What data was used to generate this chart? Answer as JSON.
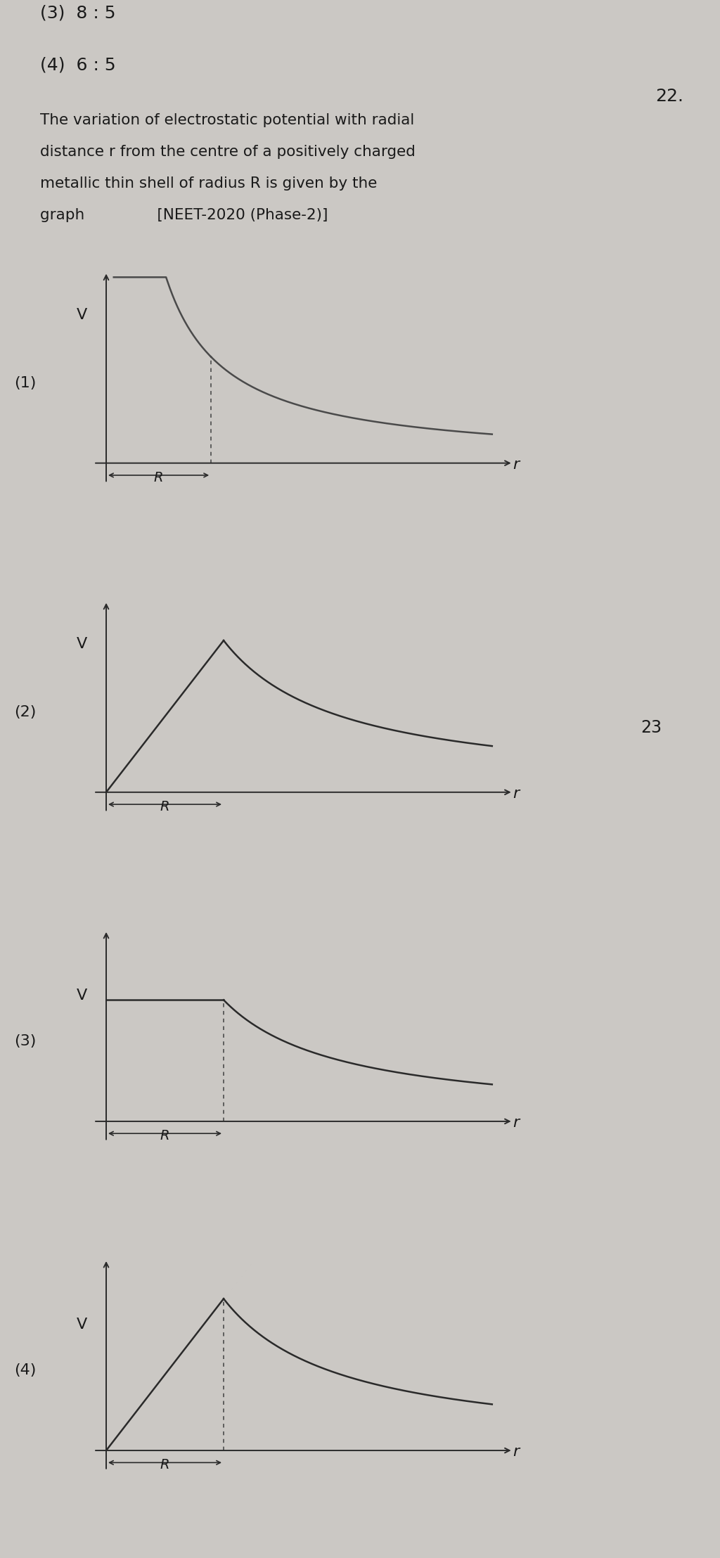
{
  "background_color": "#cbc8c4",
  "text_color": "#1a1a1a",
  "fig_width": 10.24,
  "fig_height": 22.16,
  "header_lines": [
    "(3)  8 : 5",
    "(4)  6 : 5"
  ],
  "question_text_line1": "The variation of electrostatic potential with radial",
  "question_text_line2": "distance r from the centre of a positively charged",
  "question_text_line3": "metallic thin shell of radius R is given by the",
  "question_text_line4": "graph               [NEET-2020 (Phase-2)]",
  "label_22": "22.",
  "label_23": "23",
  "graph_labels": [
    "(1)",
    "(2)",
    "(3)",
    "(4)"
  ],
  "R_label": "R",
  "V_label": "V",
  "r_label": "r",
  "line_color": "#2a2a2a",
  "curve_color": "#4a4a4a",
  "dotted_color": "#555555",
  "R_val": 2.5,
  "x_max": 9.0,
  "y_max": 4.8
}
